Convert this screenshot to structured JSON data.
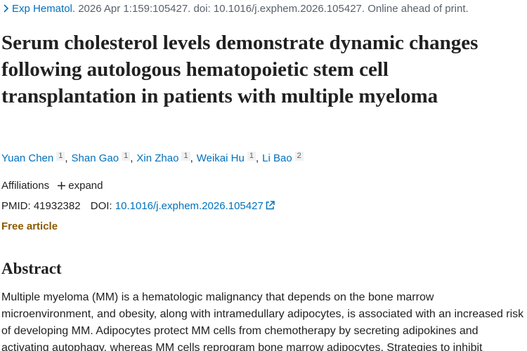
{
  "citation": {
    "journal": "Exp Hematol",
    "details": ". 2026 Apr 1:159:105427. doi: 10.1016/j.exphem.2026.105427. Online ahead of print."
  },
  "title": "Serum cholesterol levels demonstrate dynamic changes following autologous hematopoietic stem cell transplantation in patients with multiple myeloma",
  "authors": {
    "separator": ",",
    "list": [
      {
        "name": "Yuan Chen",
        "affiliation": "1"
      },
      {
        "name": "Shan Gao",
        "affiliation": "1"
      },
      {
        "name": "Xin Zhao",
        "affiliation": "1"
      },
      {
        "name": "Weikai Hu",
        "affiliation": "1"
      },
      {
        "name": "Li Bao",
        "affiliation": "2"
      }
    ]
  },
  "affiliations": {
    "label": "Affiliations",
    "toggle": "expand"
  },
  "identifiers": {
    "pmid_label": "PMID:",
    "pmid": "41932382",
    "doi_label": "DOI:",
    "doi": "10.1016/j.exphem.2026.105427"
  },
  "free_article": "Free article",
  "abstract": {
    "heading": "Abstract",
    "text": "Multiple myeloma (MM) is a hematologic malignancy that depends on the bone marrow microenvironment, and obesity, along with intramedullary adipocytes, is associated with an increased risk of developing MM. Adipocytes protect MM cells from chemotherapy by secreting adipokines and activating autophagy, whereas MM cells reprogram bone marrow adipocytes. Strategies to inhibit"
  }
}
